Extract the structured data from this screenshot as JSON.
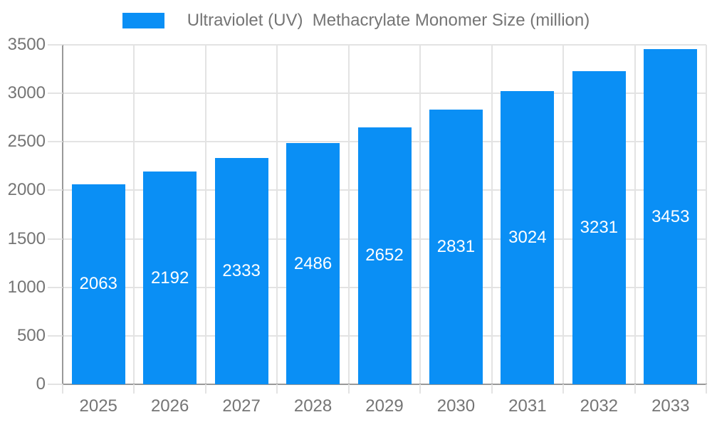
{
  "chart_data": {
    "type": "bar",
    "title": "Ultraviolet (UV)  Methacrylate Monomer Size (million)",
    "categories": [
      "2025",
      "2026",
      "2027",
      "2028",
      "2029",
      "2030",
      "2031",
      "2032",
      "2033"
    ],
    "values": [
      2063,
      2192,
      2333,
      2486,
      2652,
      2831,
      3024,
      3231,
      3453
    ],
    "xlabel": "",
    "ylabel": "",
    "ylim": [
      0,
      3500
    ],
    "yticks": [
      0,
      500,
      1000,
      1500,
      2000,
      2500,
      3000,
      3500
    ],
    "grid": true,
    "legend_position": "top",
    "bar_labels_inside": true
  },
  "legend": {
    "label": "Ultraviolet (UV)  Methacrylate Monomer Size (million)"
  },
  "colors": {
    "bar": "#0a8ff5",
    "bar_label": "#ffffff",
    "grid_line": "#e3e3e3",
    "axis_line": "#999999",
    "axis_text": "#757575",
    "background": "#ffffff"
  }
}
